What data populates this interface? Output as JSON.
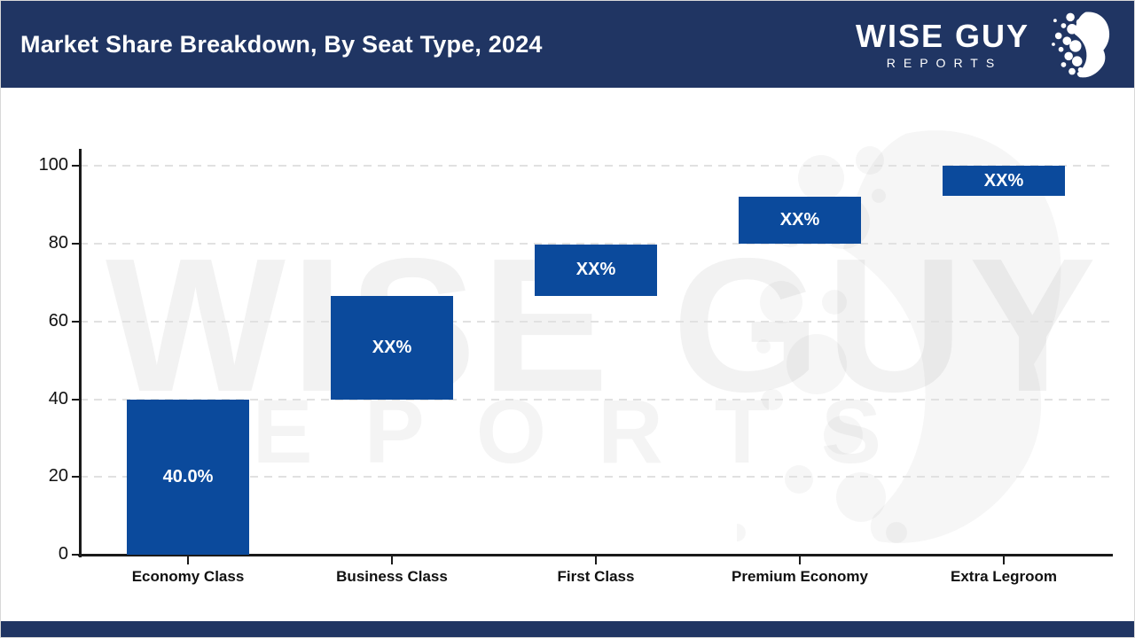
{
  "header": {
    "title": "Market Share Breakdown, By Seat Type, 2024",
    "logo": {
      "line1": "WISE GUY",
      "line2": "REPORTS"
    }
  },
  "watermark": {
    "line1": "WISE GUY",
    "line2": "REPORTS"
  },
  "chart_data": {
    "type": "bar",
    "subtype": "waterfall",
    "title": "Market Share Breakdown, By Seat Type, 2024",
    "categories": [
      "Economy Class",
      "Business Class",
      "First Class",
      "Premium Economy",
      "Extra Legroom"
    ],
    "bars": [
      {
        "category": "Economy Class",
        "start": 0,
        "end": 40,
        "label": "40.0%"
      },
      {
        "category": "Business Class",
        "start": 40,
        "end": 66.6,
        "label": "XX%"
      },
      {
        "category": "First Class",
        "start": 66.6,
        "end": 79.9,
        "label": "XX%"
      },
      {
        "category": "Premium Economy",
        "start": 80.0,
        "end": 92.2,
        "label": "XX%"
      },
      {
        "category": "Extra Legroom",
        "start": 92.4,
        "end": 100,
        "label": "XX%"
      }
    ],
    "y_ticks": [
      0,
      20,
      40,
      60,
      80,
      100
    ],
    "ylim": [
      0,
      105
    ],
    "xlabel": "",
    "ylabel": "",
    "grid": "horizontal-dashed",
    "legend": "none",
    "bar_color": "#0b4a9c",
    "axis_color": "#1a1a1a"
  },
  "colors": {
    "header_bg": "#203563",
    "footer_bg": "#203563",
    "bar": "#0b4a9c",
    "gridline": "#e1e1e1"
  }
}
